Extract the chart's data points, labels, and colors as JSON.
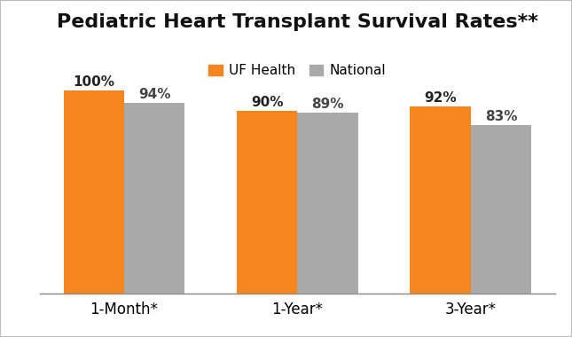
{
  "title": "Pediatric Heart Transplant Survival Rates**",
  "categories": [
    "1-Month*",
    "1-Year*",
    "3-Year*"
  ],
  "uf_health": [
    100,
    90,
    92
  ],
  "national": [
    94,
    89,
    83
  ],
  "uf_color": "#F5861F",
  "national_color": "#A9A9A9",
  "bar_width": 0.35,
  "ylim": [
    0,
    108
  ],
  "legend_labels": [
    "UF Health",
    "National"
  ],
  "title_fontsize": 16,
  "tick_fontsize": 12,
  "label_fontsize": 11,
  "legend_fontsize": 11,
  "background_color": "#FFFFFF",
  "border_color": "#CCCCCC"
}
